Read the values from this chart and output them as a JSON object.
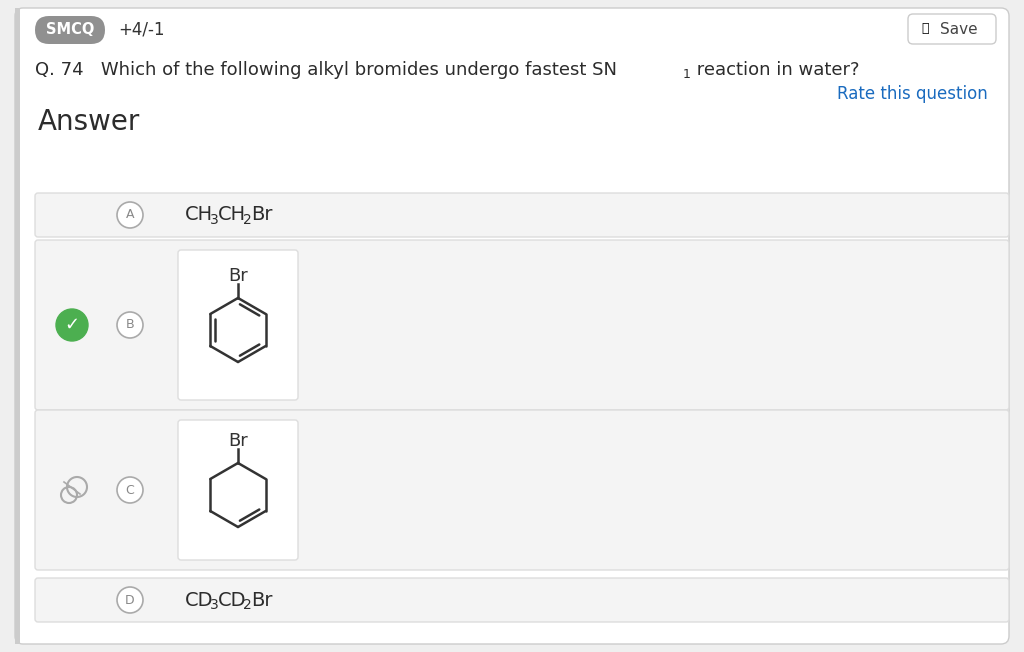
{
  "bg_color": "#efefef",
  "card_bg": "#ffffff",
  "smcq_bg": "#909090",
  "smcq_text": "SMCQ",
  "score_text": "+4/-1",
  "save_text": "Save",
  "rate_text": "Rate this question",
  "rate_color": "#1a6bbf",
  "answer_text": "Answer",
  "correct_color": "#4caf50",
  "circle_border": "#aaaaaa",
  "option_bg": "#f4f4f4",
  "border_color": "#dddddd",
  "text_color": "#2c2c2c",
  "chem_color": "#333333"
}
